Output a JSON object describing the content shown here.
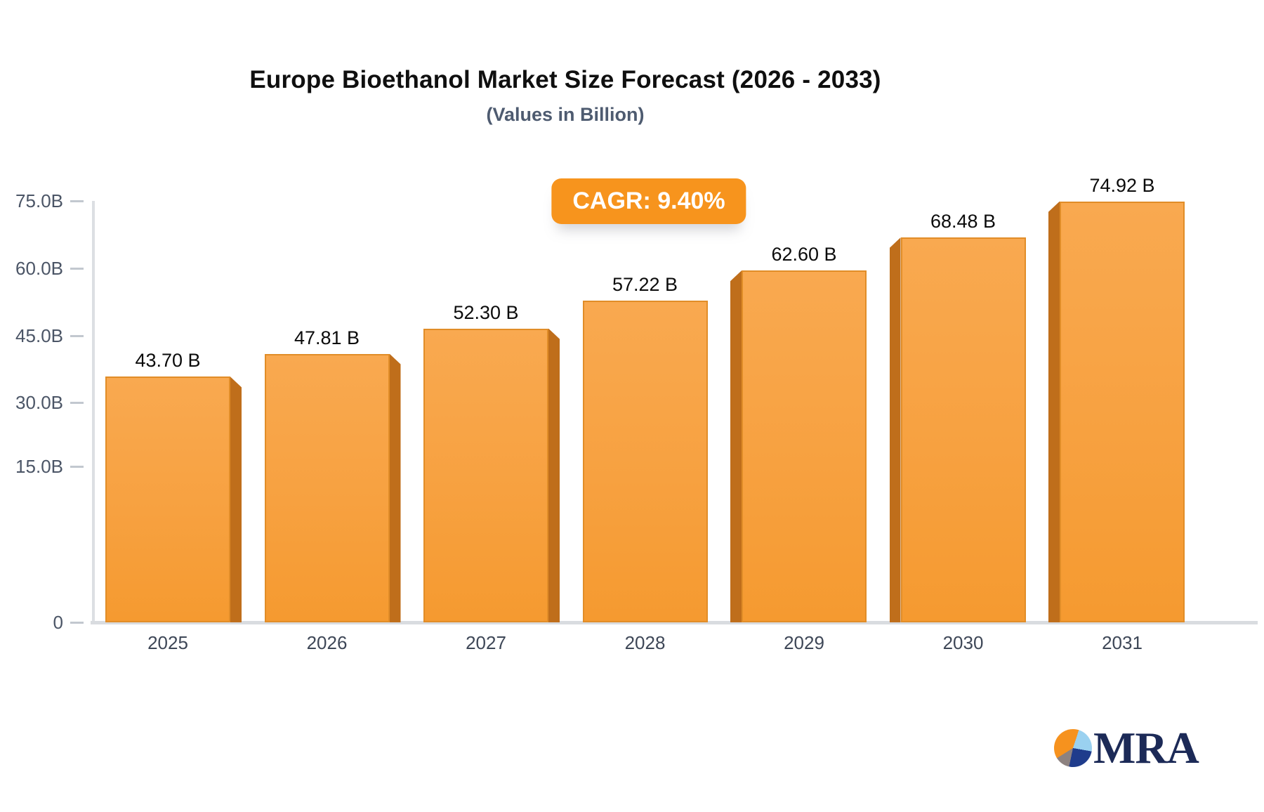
{
  "header": {
    "title": "Europe Bioethanol Market Size Forecast (2026 - 2033)",
    "subtitle": "(Values in Billion)"
  },
  "cagr": {
    "label": "CAGR: 9.40%"
  },
  "chart_data": {
    "type": "bar",
    "title": "Europe Bioethanol Market Size Forecast (2026 - 2033)",
    "subtitle": "(Values in Billion)",
    "categories": [
      "2025",
      "2026",
      "2027",
      "2028",
      "2029",
      "2030",
      "2031"
    ],
    "values": [
      43.7,
      47.81,
      52.3,
      57.22,
      62.6,
      68.48,
      74.92
    ],
    "value_labels": [
      "43.70 B",
      "47.81 B",
      "52.30 B",
      "57.22 B",
      "62.60 B",
      "68.48 B",
      "74.92 B"
    ],
    "y_ticks": [
      {
        "label": "75.0B",
        "value": 75
      },
      {
        "label": "60.0B",
        "value": 60
      },
      {
        "label": "45.0B",
        "value": 45
      },
      {
        "label": "30.0B",
        "value": 30
      },
      {
        "label": "15.0B",
        "value": 15
      },
      {
        "label": "0",
        "value": 0
      }
    ],
    "ylim": [
      0,
      75
    ],
    "grid": false,
    "legend": false,
    "cagr_annotation": "CAGR: 9.40%",
    "colors": {
      "bar_face_top": "#f9a950",
      "bar_face_bottom": "#f59a30",
      "bar_side_3d": "#bf6e1b",
      "badge": "#f7941d",
      "axis": "#d9dce0"
    }
  },
  "logo": {
    "text": "MRA"
  }
}
